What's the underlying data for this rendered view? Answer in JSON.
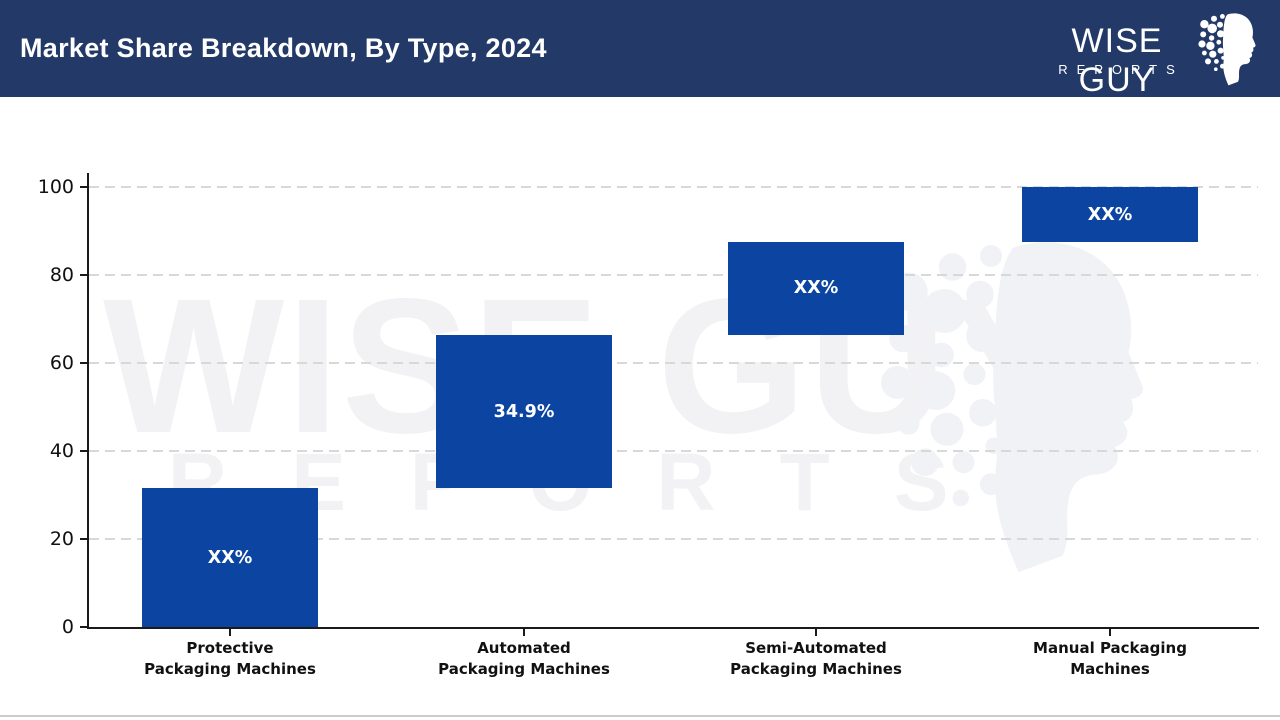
{
  "header": {
    "title": "Market Share Breakdown, By Type, 2024",
    "logo": {
      "name": "WISE GUY",
      "tagline": "REPORTS"
    }
  },
  "watermark": {
    "line1": "WISE GUY",
    "line2": "REPORTS"
  },
  "chart_data": {
    "type": "bar",
    "subtype": "waterfall-floating-bars",
    "title": "Market Share Breakdown, By Type, 2024",
    "categories": [
      "Protective Packaging Machines",
      "Automated Packaging Machines",
      "Semi-Automated Packaging Machines",
      "Manual Packaging Machines"
    ],
    "categories_display": [
      "Protective\nPackaging Machines",
      "Automated\nPackaging Machines",
      "Semi-Automated\nPackaging Machines",
      "Manual Packaging\nMachines"
    ],
    "segments": [
      {
        "category": "Protective Packaging Machines",
        "start": 0,
        "end": 31.5,
        "value": 31.5,
        "value_label": "XX%"
      },
      {
        "category": "Automated Packaging Machines",
        "start": 31.5,
        "end": 66.4,
        "value": 34.9,
        "value_label": "34.9%"
      },
      {
        "category": "Semi-Automated Packaging Machines",
        "start": 66.4,
        "end": 87.5,
        "value": 21.1,
        "value_label": "XX%"
      },
      {
        "category": "Manual Packaging Machines",
        "start": 87.5,
        "end": 100,
        "value": 12.5,
        "value_label": "XX%"
      }
    ],
    "y_ticks": [
      0,
      20,
      40,
      60,
      80,
      100
    ],
    "ylim": [
      0,
      103
    ],
    "xlabel": "",
    "ylabel": "",
    "grid": "horizontal-dashed",
    "legend": "none",
    "bar_color": "#0B45A1"
  },
  "colors": {
    "header_bg": "#233A69",
    "bar": "#0B45A1",
    "gridline": "#D8D8D8",
    "axis": "#1A1A1A",
    "text": "#111111",
    "watermark": "#F2F2F4",
    "bottom_line": "#CCCCCC"
  }
}
